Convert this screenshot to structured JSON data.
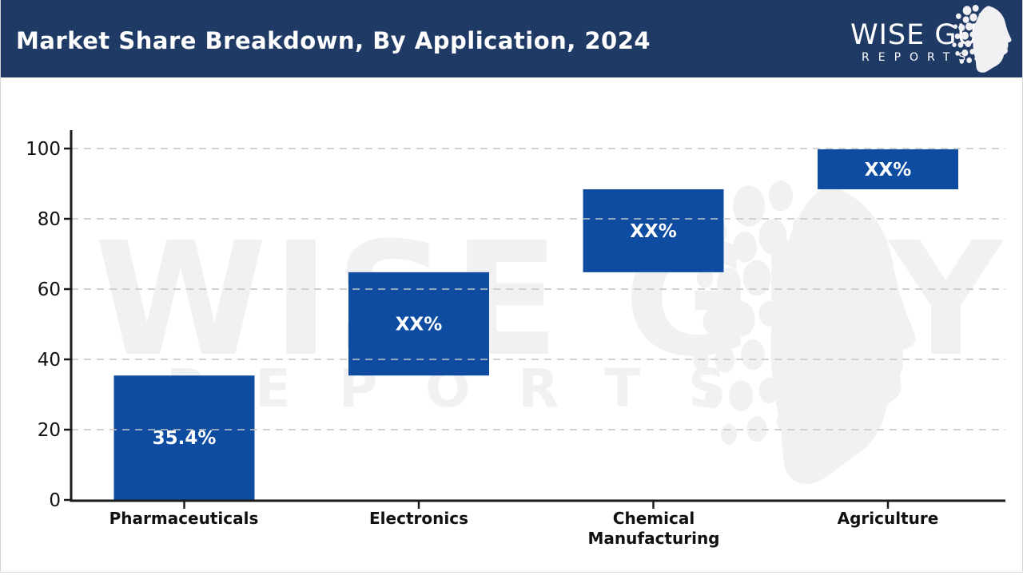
{
  "header": {
    "title": "Market Share Breakdown, By Application, 2024",
    "logo": {
      "name": "WISE GUY",
      "tagline": "REPORTS"
    }
  },
  "watermark": {
    "line1": "WISE GUY",
    "line2": "REPORTS"
  },
  "chart_data": {
    "type": "bar",
    "variant": "waterfall",
    "title": "Market Share Breakdown, By Application, 2024",
    "categories": [
      "Pharmaceuticals",
      "Electronics",
      "Chemical Manufacturing",
      "Agriculture"
    ],
    "segments": [
      {
        "category": "Pharmaceuticals",
        "start": 0,
        "end": 35.4,
        "label": "35.4%"
      },
      {
        "category": "Electronics",
        "start": 35.4,
        "end": 64.8,
        "label": "XX%"
      },
      {
        "category": "Chemical Manufacturing",
        "start": 64.8,
        "end": 88.4,
        "label": "XX%"
      },
      {
        "category": "Agriculture",
        "start": 88.4,
        "end": 99.8,
        "label": "XX%"
      }
    ],
    "yticks": [
      0,
      20,
      40,
      60,
      80,
      100
    ],
    "ylim": [
      0,
      105
    ],
    "xlabel": "",
    "ylabel": "",
    "grid": "dashed-horizontal",
    "legend": "none"
  },
  "colors": {
    "header_bg": "#203a66",
    "bar": "#0d4ca0",
    "bar_label": "#ffffff",
    "axis": "#1a1a1a",
    "grid": "#c4c4c4",
    "watermark": "#f1f1f4"
  }
}
